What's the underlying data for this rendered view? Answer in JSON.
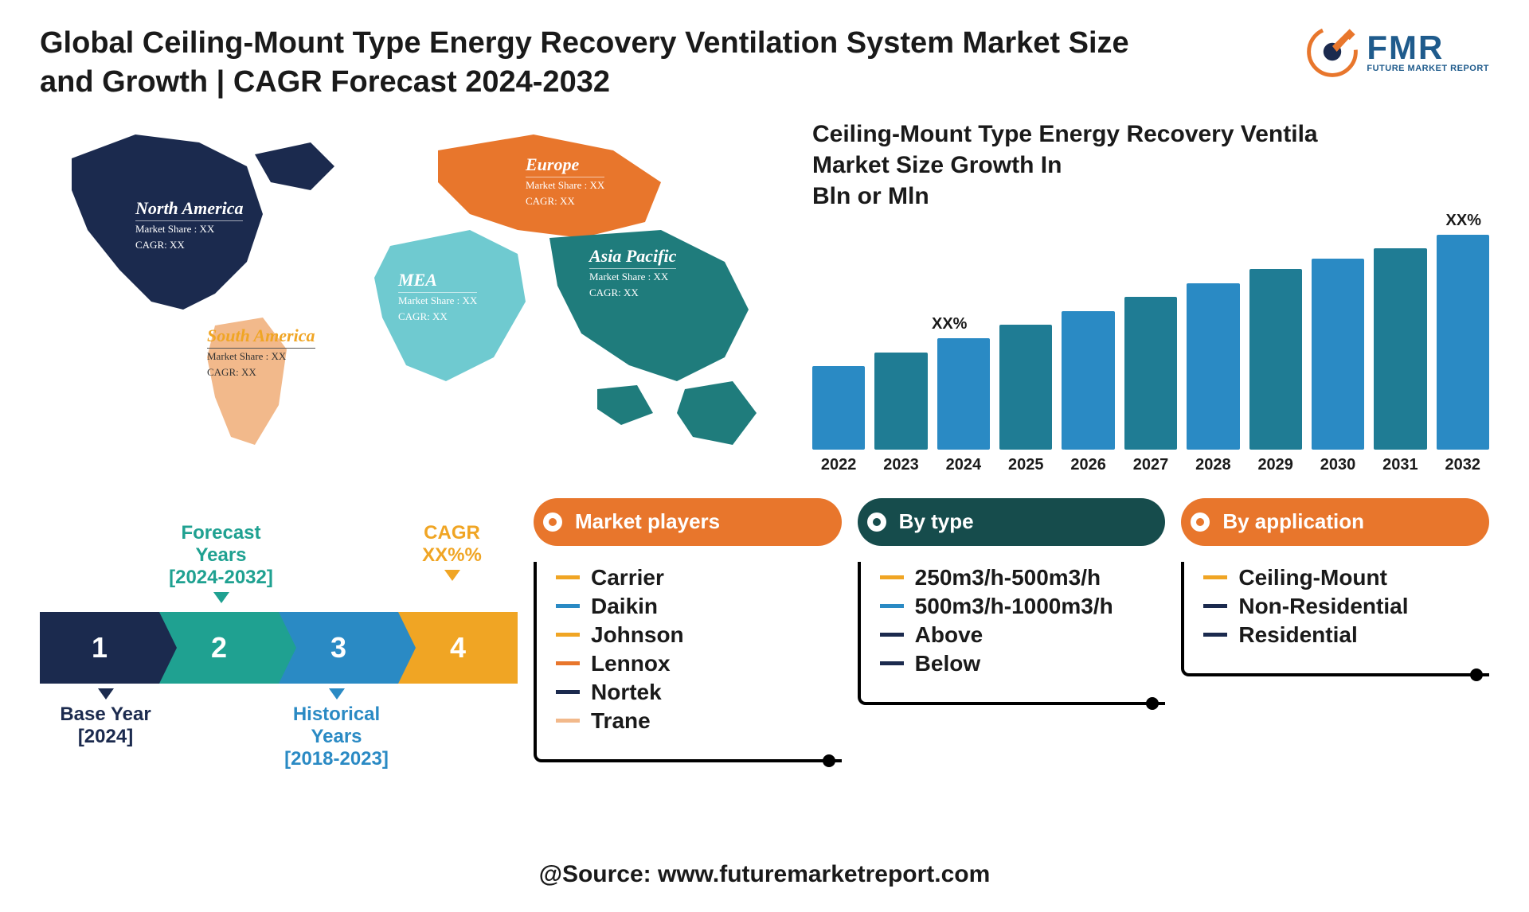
{
  "title": "Global Ceiling-Mount Type Energy Recovery Ventilation System Market Size and Growth | CAGR Forecast 2024-2032",
  "logo": {
    "fmr": "FMR",
    "sub": "FUTURE MARKET REPORT"
  },
  "regions": {
    "na": {
      "name": "North America",
      "share": "Market Share : XX",
      "cagr": "CAGR: XX",
      "color": "#1b2a4e"
    },
    "sa": {
      "name": "South America",
      "share": "Market Share : XX",
      "cagr": "CAGR: XX",
      "color": "#f2b98b"
    },
    "eu": {
      "name": "Europe",
      "share": "Market Share : XX",
      "cagr": "CAGR: XX",
      "color": "#e8762c"
    },
    "mea": {
      "name": "MEA",
      "share": "Market Share : XX",
      "cagr": "CAGR: XX",
      "color": "#6fcad0"
    },
    "apac": {
      "name": "Asia Pacific",
      "share": "Market Share : XX",
      "cagr": "CAGR: XX",
      "color": "#1f7c7c"
    }
  },
  "chart": {
    "title_l1": "Ceiling-Mount Type Energy Recovery Ventila",
    "title_l2": "Market Size Growth In",
    "title_l3": "Bln or Mln",
    "years": [
      "2022",
      "2023",
      "2024",
      "2025",
      "2026",
      "2027",
      "2028",
      "2029",
      "2030",
      "2031",
      "2032"
    ],
    "values": [
      120,
      140,
      160,
      180,
      200,
      220,
      240,
      260,
      275,
      290,
      310
    ],
    "max": 310,
    "colors": [
      "#2a8ac4",
      "#1f7c94",
      "#2a8ac4",
      "#1f7c94",
      "#2a8ac4",
      "#1f7c94",
      "#2a8ac4",
      "#1f7c94",
      "#2a8ac4",
      "#1f7c94",
      "#2a8ac4"
    ],
    "annot_2024": "XX%",
    "annot_2032": "XX%"
  },
  "timeline": {
    "forecast": {
      "label": "Forecast Years",
      "range": "[2024-2032]",
      "color": "#1fa191"
    },
    "cagr": {
      "label": "CAGR",
      "range": "XX%%",
      "color": "#f0a524"
    },
    "base": {
      "label": "Base Year",
      "range": "[2024]",
      "color": "#1b2a4e"
    },
    "hist": {
      "label": "Historical Years",
      "range": "[2018-2023]",
      "color": "#2a8ac4"
    },
    "segments": [
      {
        "num": "1",
        "color": "#1b2a4e"
      },
      {
        "num": "2",
        "color": "#1fa191"
      },
      {
        "num": "3",
        "color": "#2a8ac4"
      },
      {
        "num": "4",
        "color": "#f0a524"
      }
    ]
  },
  "categories": {
    "players": {
      "title": "Market players",
      "pill_color": "#e8762c",
      "items": [
        "Carrier",
        "Daikin",
        "Johnson",
        "Lennox",
        "Nortek",
        "Trane"
      ],
      "dash_colors": [
        "#f0a524",
        "#2a8ac4",
        "#f0a524",
        "#e8762c",
        "#1b2a4e",
        "#f2b98b"
      ]
    },
    "type": {
      "title": "By type",
      "pill_color": "#164c4c",
      "items": [
        "250m3/h-500m3/h",
        "500m3/h-1000m3/h",
        "Above",
        "Below"
      ],
      "dash_colors": [
        "#f0a524",
        "#2a8ac4",
        "#1b2a4e",
        "#1b2a4e"
      ]
    },
    "application": {
      "title": "By application",
      "pill_color": "#e8762c",
      "items": [
        "Ceiling-Mount",
        "Non-Residential",
        "Residential"
      ],
      "dash_colors": [
        "#f0a524",
        "#1b2a4e",
        "#1b2a4e"
      ]
    }
  },
  "source": "@Source: www.futuremarketreport.com"
}
